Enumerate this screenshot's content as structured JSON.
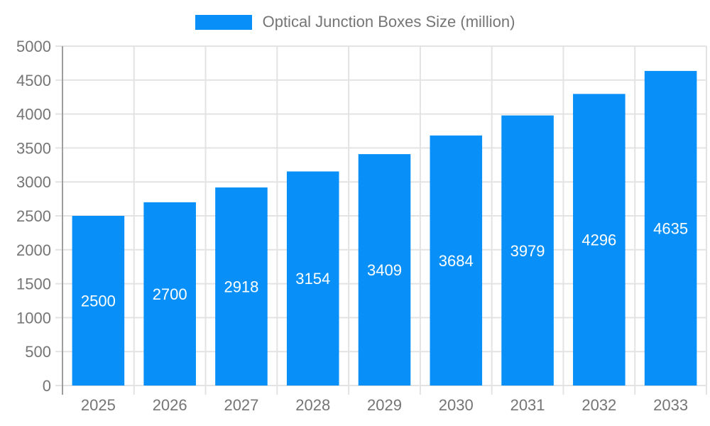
{
  "legend": {
    "label": "Optical Junction Boxes Size (million)"
  },
  "chart_data": {
    "type": "bar",
    "title": "Optical Junction Boxes Size (million)",
    "categories": [
      "2025",
      "2026",
      "2027",
      "2028",
      "2029",
      "2030",
      "2031",
      "2032",
      "2033"
    ],
    "values": [
      2500,
      2700,
      2918,
      3154,
      3409,
      3684,
      3979,
      4296,
      4635
    ],
    "xlabel": "",
    "ylabel": "",
    "ylim": [
      0,
      5000
    ],
    "yticks": [
      0,
      500,
      1000,
      1500,
      2000,
      2500,
      3000,
      3500,
      4000,
      4500,
      5000
    ],
    "grid": true,
    "legend_position": "top-center",
    "bar_value_labels_inside": true,
    "colors": {
      "bar": "#0890f8",
      "grid": "#e3e3e3",
      "axis": "#9e9e9e",
      "text": "#757575",
      "bar_label": "#ffffff",
      "background": "#ffffff"
    }
  }
}
